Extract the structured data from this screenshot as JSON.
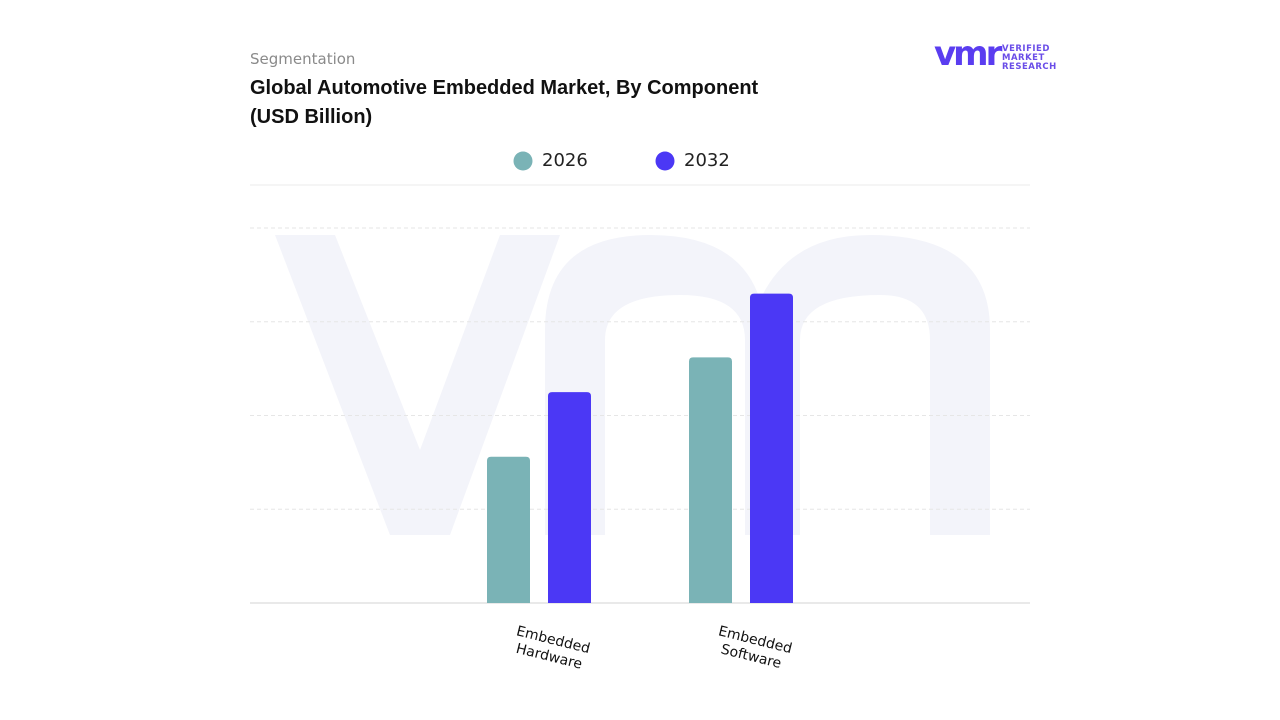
{
  "chart_data": {
    "type": "bar",
    "subtitle": "Segmentation",
    "title": "Global Automotive Embedded Market, By Component (USD Billion)",
    "categories": [
      "Embedded Hardware",
      "Embedded Software"
    ],
    "series": [
      {
        "name": "2026",
        "color": "#7ab3b6",
        "values": [
          1.56,
          2.62
        ]
      },
      {
        "name": "2032",
        "color": "#4b38f5",
        "values": [
          2.25,
          3.3
        ]
      }
    ],
    "ylim": [
      0,
      4.5
    ],
    "yticks": [
      0,
      1,
      2,
      3,
      4
    ],
    "grid": true
  },
  "logo": {
    "mark": "vmr",
    "lines": [
      "VERIFIED",
      "MARKET",
      "RESEARCH"
    ]
  }
}
